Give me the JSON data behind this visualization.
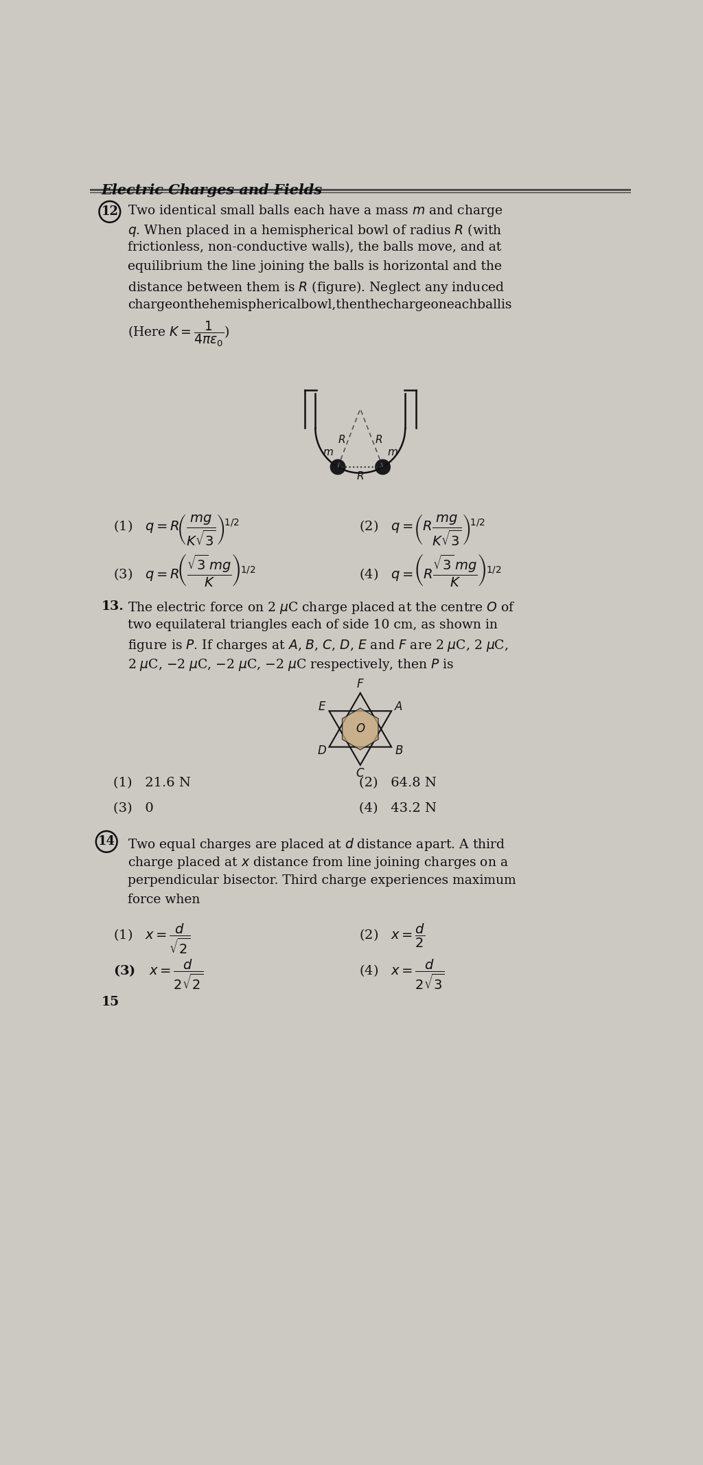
{
  "bg_color": "#ccc8c2",
  "text_color": "#111111",
  "title": "Electric Charges and Fields",
  "lh": 36,
  "fs_main": 13.5,
  "fs_ans": 14,
  "q12_lines": [
    "Two identical small balls each have a mass $m$ and charge",
    "$q$. When placed in a hemispherical bowl of radius $R$ (with",
    "frictionless, non-conductive walls), the balls move, and at",
    "equilibrium the line joining the balls is horizontal and the",
    "distance between them is $R$ (figure). Neglect any induced",
    "chargeonthehemisphericalbowl,thenthechargeoneachballis"
  ],
  "q13_lines": [
    "The electric force on 2 $\\mu$C charge placed at the centre $O$ of",
    "two equilateral triangles each of side 10 cm, as shown in",
    "figure is $P$. If charges at $A$, $B$, $C$, $D$, $E$ and $F$ are 2 $\\mu$C, 2 $\\mu$C,",
    "2 $\\mu$C, $-$2 $\\mu$C, $-$2 $\\mu$C, $-$2 $\\mu$C respectively, then $P$ is"
  ],
  "q14_lines": [
    "Two equal charges are placed at $d$ distance apart. A third",
    "charge placed at $x$ distance from line joining charges on a",
    "perpendicular bisector. Third charge experiences maximum",
    "force when"
  ]
}
